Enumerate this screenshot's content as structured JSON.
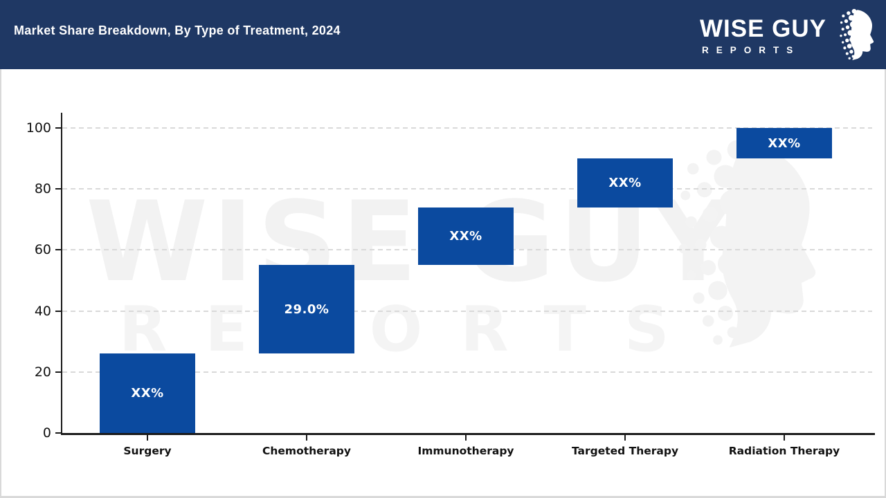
{
  "header": {
    "title": "Market Share Breakdown, By Type of Treatment, 2024",
    "logo": {
      "line1": "WISE GUY",
      "line2": "REPORTS",
      "head_icon": "dotted-face-profile"
    }
  },
  "watermark": {
    "line1": "WISE GUY",
    "line2": "REPORTS",
    "head_icon": "dotted-face-profile"
  },
  "colors": {
    "header_bg": "#1f3864",
    "bar": "#0b4a9f",
    "grid": "#d9d9d9",
    "axis": "#1a1a1a",
    "text": "#111111",
    "bar_label": "#ffffff",
    "watermark": "#f2f2f2"
  },
  "chart_data": {
    "type": "bar",
    "subtype": "floating-waterfall",
    "title": "Market Share Breakdown, By Type of Treatment, 2024",
    "categories": [
      "Surgery",
      "Chemotherapy",
      "Immunotherapy",
      "Targeted Therapy",
      "Radiation Therapy"
    ],
    "segments": [
      {
        "category": "Surgery",
        "start": 0,
        "end": 26,
        "value": 26,
        "label": "XX%"
      },
      {
        "category": "Chemotherapy",
        "start": 26,
        "end": 55,
        "value": 29,
        "label": "29.0%"
      },
      {
        "category": "Immunotherapy",
        "start": 55,
        "end": 74,
        "value": 19,
        "label": "XX%"
      },
      {
        "category": "Targeted Therapy",
        "start": 74,
        "end": 90,
        "value": 16,
        "label": "XX%"
      },
      {
        "category": "Radiation Therapy",
        "start": 90,
        "end": 100,
        "value": 10,
        "label": "XX%"
      }
    ],
    "xlabel": "",
    "ylabel": "",
    "yticks": [
      0,
      20,
      40,
      60,
      80,
      100
    ],
    "ylim": [
      0,
      105
    ],
    "grid": true,
    "grid_style": "dashed",
    "legend": "none"
  }
}
